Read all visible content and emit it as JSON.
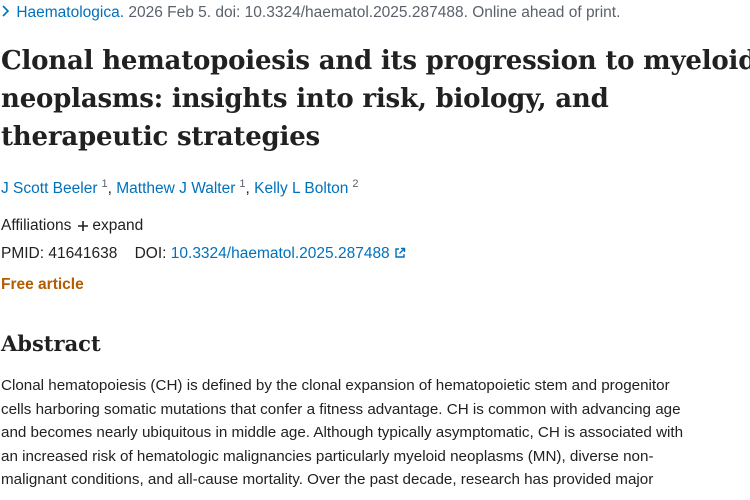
{
  "citation": {
    "journal": "Haematologica.",
    "details": "2026 Feb 5. doi: 10.3324/haematol.2025.287488. Online ahead of print."
  },
  "title_lines": [
    "Clonal hematopoiesis and its progression to myeloid",
    "neoplasms: insights into risk, biology, and",
    "therapeutic strategies"
  ],
  "authors": [
    {
      "name": "J Scott Beeler",
      "affiliation": "1"
    },
    {
      "name": "Matthew J Walter",
      "affiliation": "1"
    },
    {
      "name": "Kelly L Bolton",
      "affiliation": "2"
    }
  ],
  "author_separator": ",",
  "affiliations": {
    "label": "Affiliations",
    "toggle": "expand"
  },
  "identifiers": {
    "pmid_label": "PMID:",
    "pmid": "41641638",
    "doi_label": "DOI:",
    "doi": "10.3324/haematol.2025.287488"
  },
  "free_article": "Free article",
  "abstract": {
    "heading": "Abstract",
    "lines": [
      "Clonal hematopoiesis (CH) is defined by the clonal expansion of hematopoietic stem and progenitor",
      "cells harboring somatic mutations that confer a fitness advantage. CH is common with advancing age",
      "and becomes nearly ubiquitous in middle age. Although typically asymptomatic, CH is associated with",
      "an increased risk of hematologic malignancies particularly myeloid neoplasms (MN), diverse non-",
      "malignant conditions, and all-cause mortality. Over the past decade, research has provided major"
    ]
  }
}
